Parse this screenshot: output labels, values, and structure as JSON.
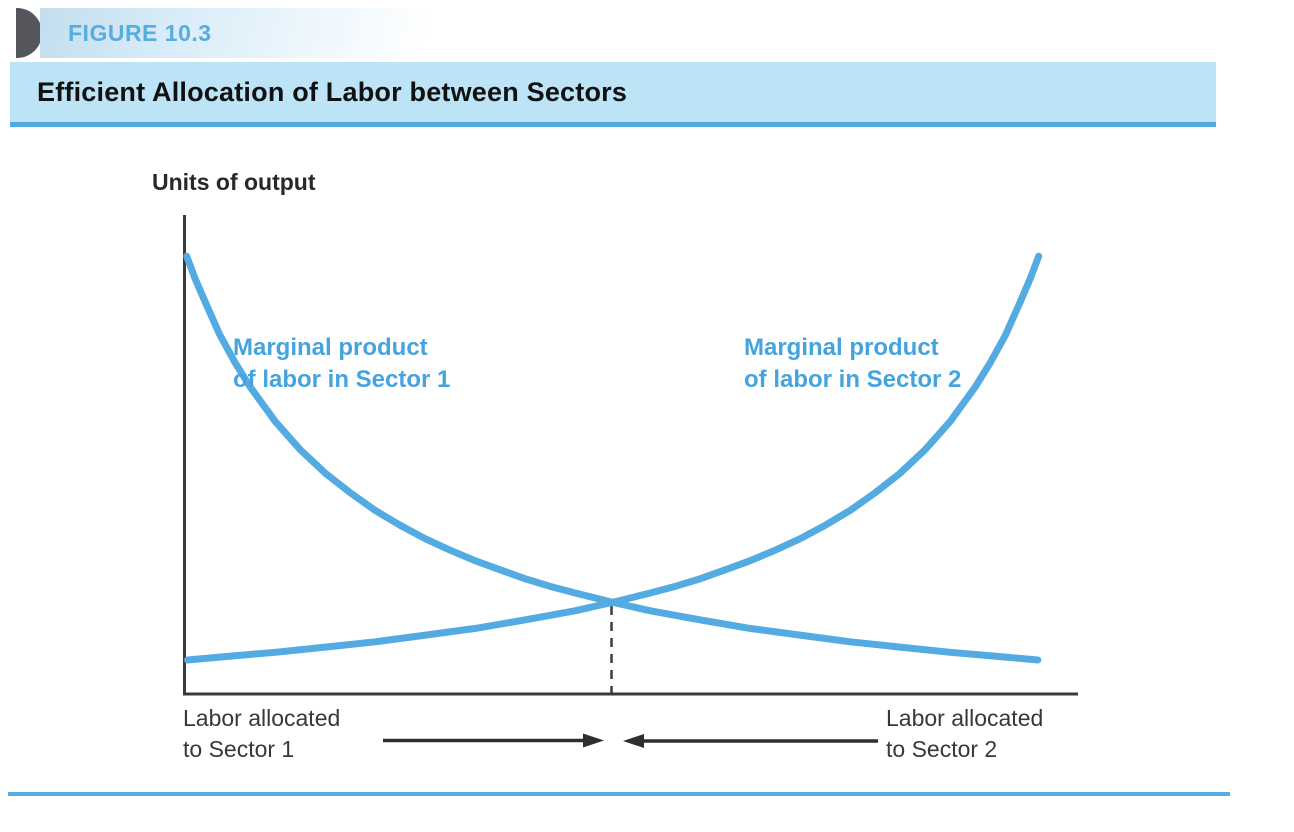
{
  "header": {
    "figure_label": "FIGURE 10.3",
    "title": "Efficient Allocation of Labor between Sectors"
  },
  "chart": {
    "y_axis_title": "Units of output",
    "curve1_label": "Marginal product\nof labor in Sector 1",
    "curve2_label": "Marginal product\nof labor in Sector 2",
    "x_label_left": "Labor allocated\nto Sector 1",
    "x_label_right": "Labor allocated\nto Sector 2"
  },
  "colors": {
    "curve_blue": "#53ABE1",
    "label_blue": "#45A4DE",
    "band_blue": "#BCE4F6",
    "band_underline_blue": "#4FAAE1",
    "figure_label_blue": "#57ACE0",
    "bottom_rule_blue": "#55AEE2",
    "axis_dark": "#3A3A3C",
    "ornament_gray": "#54565B"
  },
  "chart_data": {
    "type": "line",
    "title": "Efficient Allocation of Labor between Sectors",
    "ylabel": "Units of output",
    "xlabel_left": "Labor allocated to Sector 1",
    "xlabel_right": "Labor allocated to Sector 2",
    "axes_numeric": false,
    "note": "Conceptual diagram; coordinates normalized 0-1 within the plot box (x = share of labor allocated to Sector 1, y = units of output)",
    "series": [
      {
        "name": "Marginal product of labor in Sector 1",
        "shape": "decreasing convex",
        "points": [
          [
            0.003,
            0.914
          ],
          [
            0.012,
            0.869
          ],
          [
            0.024,
            0.817
          ],
          [
            0.04,
            0.75
          ],
          [
            0.057,
            0.692
          ],
          [
            0.074,
            0.641
          ],
          [
            0.102,
            0.569
          ],
          [
            0.13,
            0.51
          ],
          [
            0.158,
            0.461
          ],
          [
            0.186,
            0.42
          ],
          [
            0.214,
            0.383
          ],
          [
            0.242,
            0.352
          ],
          [
            0.27,
            0.324
          ],
          [
            0.298,
            0.3
          ],
          [
            0.326,
            0.278
          ],
          [
            0.354,
            0.259
          ],
          [
            0.381,
            0.241
          ],
          [
            0.409,
            0.225
          ],
          [
            0.437,
            0.211
          ],
          [
            0.478,
            0.192
          ],
          [
            0.521,
            0.174
          ],
          [
            0.577,
            0.155
          ],
          [
            0.633,
            0.137
          ],
          [
            0.689,
            0.123
          ],
          [
            0.745,
            0.109
          ],
          [
            0.801,
            0.098
          ],
          [
            0.857,
            0.087
          ],
          [
            0.913,
            0.078
          ],
          [
            0.955,
            0.071
          ]
        ]
      },
      {
        "name": "Marginal product of labor in Sector 2",
        "shape": "increasing convex",
        "points": [
          [
            0.004,
            0.071
          ],
          [
            0.046,
            0.078
          ],
          [
            0.102,
            0.087
          ],
          [
            0.158,
            0.098
          ],
          [
            0.214,
            0.109
          ],
          [
            0.27,
            0.123
          ],
          [
            0.326,
            0.137
          ],
          [
            0.382,
            0.155
          ],
          [
            0.438,
            0.174
          ],
          [
            0.481,
            0.192
          ],
          [
            0.522,
            0.211
          ],
          [
            0.55,
            0.225
          ],
          [
            0.578,
            0.241
          ],
          [
            0.605,
            0.259
          ],
          [
            0.633,
            0.278
          ],
          [
            0.661,
            0.3
          ],
          [
            0.689,
            0.324
          ],
          [
            0.717,
            0.352
          ],
          [
            0.745,
            0.383
          ],
          [
            0.773,
            0.42
          ],
          [
            0.801,
            0.461
          ],
          [
            0.829,
            0.51
          ],
          [
            0.857,
            0.569
          ],
          [
            0.885,
            0.641
          ],
          [
            0.902,
            0.692
          ],
          [
            0.919,
            0.75
          ],
          [
            0.935,
            0.817
          ],
          [
            0.947,
            0.869
          ],
          [
            0.956,
            0.914
          ]
        ]
      }
    ],
    "intersection": {
      "x": 0.478,
      "y": 0.192,
      "dashed_drop_to_x_axis": true
    },
    "annotations": [
      {
        "type": "arrow",
        "direction": "right",
        "below_axis": true,
        "x_from": 0.223,
        "x_to": 0.469
      },
      {
        "type": "arrow",
        "direction": "left",
        "below_axis": true,
        "x_from": 0.776,
        "x_to": 0.491
      }
    ],
    "legend_position": "labels beside curves"
  }
}
